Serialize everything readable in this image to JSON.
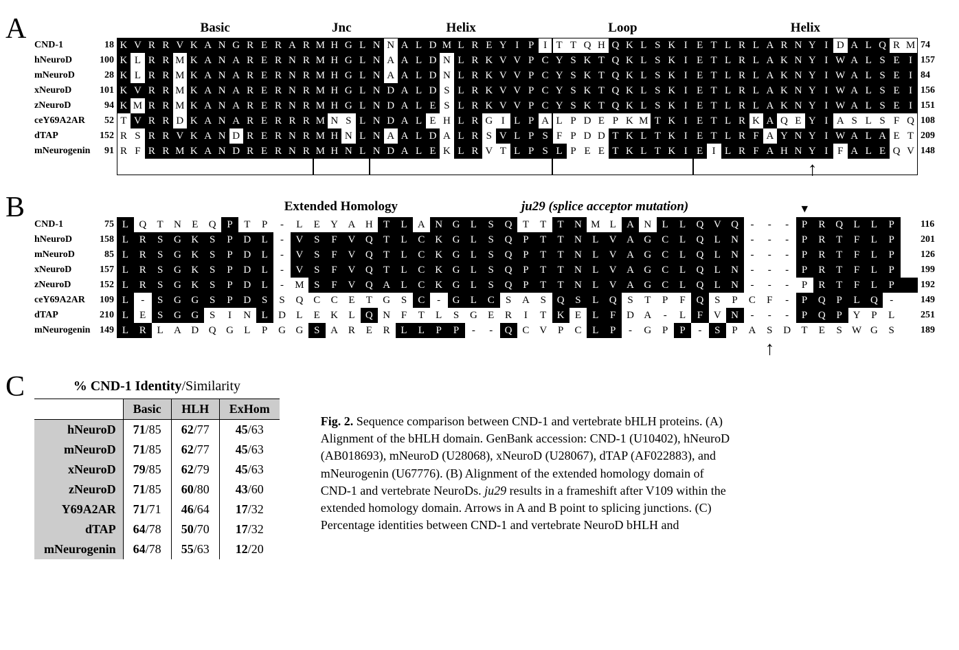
{
  "panelA": {
    "label": "A",
    "domains": [
      "Basic",
      "Jnc",
      "Helix",
      "Loop",
      "Helix"
    ],
    "domain_spans": [
      14,
      4,
      13,
      10,
      16
    ],
    "rows": [
      {
        "name": "CND-1",
        "start": 18,
        "end": 74,
        "seq": "KVRRVKANGRERARMHGLNNALDMLREYIPITTQHQKLSKIETLRLARNYIDALQRM",
        "cons": "cccccccccccccccccccnccccccccccnnnnnccccccccccccccccncccnn"
      },
      {
        "name": "hNeuroD",
        "start": 100,
        "end": 157,
        "seq": "KLRRMKANARERNRMHGLNAALDNLRKVVPCYSKTQKLSKIETLRLAKNYIWALSEI",
        "cons": "cnccnccccccccccccccncccnccccccccccccccccccccccccccccccccc"
      },
      {
        "name": "mNeuroD",
        "start": 28,
        "end": 84,
        "seq": "KLRRMKANARERNRMHGLNAALDNLRKVVPCYSKTQKLSKIETLRLAKNYIWALSEI",
        "cons": "cnccnccccccccccccccncccnccccccccccccccccccccccccccccccccc"
      },
      {
        "name": "xNeuroD",
        "start": 101,
        "end": 156,
        "seq": "KVRRMKANARERNRMHGLNDALDSLRKVVPCYSKTQKLSKIETLRLAKNYIWALSEI",
        "cons": "ccccnccccccccccccccccccnccccccccccccccccccccccccccccccccc"
      },
      {
        "name": "zNeuroD",
        "start": 94,
        "end": 151,
        "seq": "KMRRMKANARERNRMHGLNDALESLRKVVPCYSKTQKLSKIETLRLAKNYIWALSEI",
        "cons": "cnccnccccccccccccccccccnccccccccccccccccccccccccccccccccc"
      },
      {
        "name": "ceY69A2AR",
        "start": 52,
        "end": 108,
        "seq": "TVRRDKANARERRRMNSLNDALEHLRGILPALPDEPKMTKIETLRKAQEYIASLSFQ",
        "cons": "ncccnccccccccccnncccccnnccnnccnnnnnnnncccccccncnnccnnnnnn"
      },
      {
        "name": "dTAP",
        "start": 152,
        "end": 209,
        "seq": "RSRRVKANDRERNRMHNLNAALDALRSVLPSFPDDTKLTKIETLRFAYNYIWALAET",
        "cons": "nnccccccncccccccnccncccnccnccccnnnncccccccccccnccccccccnn"
      },
      {
        "name": "mNeurogenin",
        "start": 91,
        "end": 148,
        "seq": "RFRRMKANDRERNRMHNLNDALEKLRVTLPSLPEETKLTKIEILRFAHNYIFALEQV",
        "cons": "nncccccccccccccccccccccnccnnccccnnncccccccnccccccccncccnn"
      }
    ],
    "arrow_column": 49
  },
  "panelB": {
    "label": "B",
    "header_ext": "Extended Homology",
    "header_ju": "ju29 (splice acceptor mutation)",
    "rows": [
      {
        "name": "CND-1",
        "start": 75,
        "end": 116,
        "seq": "LQTNEQPTP-LEYAHTLANGLSQTTTNMLANLLQVQ---PRQLLP",
        "cons": "cnnnnncnnnnnnnnccncccccnnccnncnccccc---ccccccn"
      },
      {
        "name": "hNeuroD",
        "start": 158,
        "end": 201,
        "seq": "LRSGKSPDL-VSFVQTLCKGLSQPTTNLVAGCLQLN---PRTFLP",
        "cons": "ccccccccc-cccccccccccccccccccccccccc---cccccc"
      },
      {
        "name": "mNeuroD",
        "start": 85,
        "end": 126,
        "seq": "LRSGKSPDL-VSFVQTLCKGLSQPTTNLVAGCLQLN---PRTFLP",
        "cons": "ccccccccc-cccccccccccccccccccccccccc---cccccc"
      },
      {
        "name": "xNeuroD",
        "start": 157,
        "end": 199,
        "seq": "LRSGKSPDL-VSFVQTLCKGLSQPTTNLVAGCLQLN---PRTFLP",
        "cons": "ccccccccc-cccccccccccccccccccccccccc---cccccc"
      },
      {
        "name": "zNeuroD",
        "start": 152,
        "end": 192,
        "seq": "LRSGKSPDL-MSFVQALCKGLSQPTTNLVAGCLQLN---PRTFLP",
        "cons": "ccccccccc-ncccccccccccccccccccccccccc---cccccc"
      },
      {
        "name": "ceY69A2AR",
        "start": 109,
        "end": 149,
        "seq": "L-SGGSPDSSQCCETGSC-GLCSASQSLQSTPFQSPCF-PQPLQ-",
        "cons": "c-cccccccnnnnnnnnc-cccnnnccccnnnncnnnnncccccn"
      },
      {
        "name": "dTAP",
        "start": 210,
        "end": 251,
        "seq": "LESGGSINLDLEKLQNFTLSGERITKELFDA-LFVN---PQPYPL",
        "cons": "cncccnnncnnnnncnnnnnnnnnncnccnnnncnc---cccnnn"
      },
      {
        "name": "mNeurogenin",
        "start": 149,
        "end": 189,
        "seq": "LRLADQGLPGGSARERLLPP--QCVPCLP-GPP-SPASDTESWGS",
        "cons": "ccnnnnnnnnncnnnncccc--cnnnncc-nnc-cnnnnnnnnnn"
      }
    ],
    "arrow_column": 37,
    "triangle_column": 39
  },
  "panelC": {
    "label": "C",
    "title_bold": "% CND-1 Identity",
    "title_rest": "/Similarity",
    "columns": [
      "Basic",
      "HLH",
      "ExHom"
    ],
    "rows": [
      {
        "name": "hNeuroD",
        "vals": [
          [
            "71",
            "85"
          ],
          [
            "62",
            "77"
          ],
          [
            "45",
            "63"
          ]
        ]
      },
      {
        "name": "mNeuroD",
        "vals": [
          [
            "71",
            "85"
          ],
          [
            "62",
            "77"
          ],
          [
            "45",
            "63"
          ]
        ]
      },
      {
        "name": "xNeuroD",
        "vals": [
          [
            "79",
            "85"
          ],
          [
            "62",
            "79"
          ],
          [
            "45",
            "63"
          ]
        ]
      },
      {
        "name": "zNeuroD",
        "vals": [
          [
            "71",
            "85"
          ],
          [
            "60",
            "80"
          ],
          [
            "43",
            "60"
          ]
        ]
      },
      {
        "name": "Y69A2AR",
        "vals": [
          [
            "71",
            "71"
          ],
          [
            "46",
            "64"
          ],
          [
            "17",
            "32"
          ]
        ]
      },
      {
        "name": "dTAP",
        "vals": [
          [
            "64",
            "78"
          ],
          [
            "50",
            "70"
          ],
          [
            "17",
            "32"
          ]
        ]
      },
      {
        "name": "mNeurogenin",
        "vals": [
          [
            "64",
            "78"
          ],
          [
            "55",
            "63"
          ],
          [
            "12",
            "20"
          ]
        ]
      }
    ]
  },
  "caption": {
    "label": "Fig. 2.",
    "text": " Sequence comparison between CND-1 and vertebrate bHLH proteins. (A) Alignment of the bHLH domain. GenBank accession: CND-1 (U10402), hNeuroD (AB018693), mNeuroD (U28068), xNeuroD (U28067), dTAP (AF022883), and mNeurogenin (U67776). (B) Alignment of the extended homology domain of CND-1 and vertebrate NeuroDs. ",
    "text_italic": "ju29",
    "text2": " results in a frameshift after V109 within the extended homology domain. Arrows in A and B point to splicing junctions. (C) Percentage identities between CND-1 and vertebrate NeuroD bHLH and"
  }
}
